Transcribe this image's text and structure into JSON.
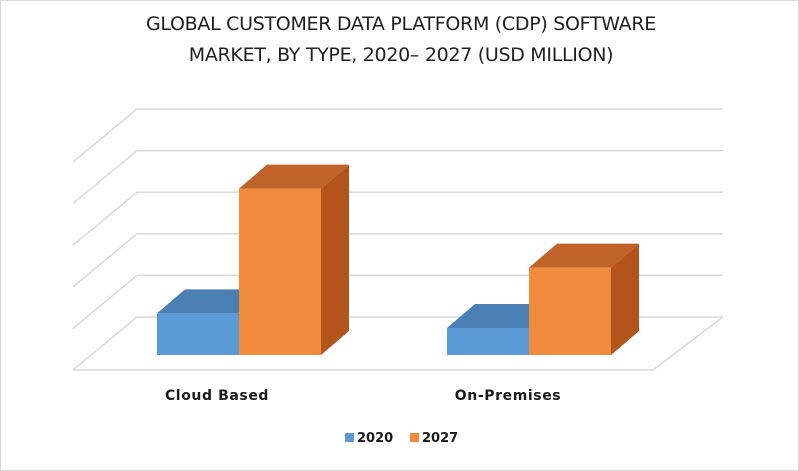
{
  "chart_data": {
    "type": "bar",
    "title_lines": [
      "GLOBAL CUSTOMER DATA PLATFORM (CDP) SOFTWARE",
      "MARKET, BY TYPE, 2020– 2027 (USD MILLION)"
    ],
    "categories": [
      "Cloud Based",
      "On-Premises"
    ],
    "series": [
      {
        "name": "2020",
        "values": [
          1.0,
          0.65
        ]
      },
      {
        "name": "2027",
        "values": [
          4.0,
          2.1
        ]
      }
    ],
    "ylim": [
      0,
      5
    ],
    "grid": true,
    "legend": "bottom",
    "three_d": true,
    "colors": {
      "2020": {
        "front": "#5b9bd5",
        "top": "#4a7fb3",
        "side": "#3d6d9e"
      },
      "2027": {
        "front": "#f08a3c",
        "top": "#c0632a",
        "side": "#b3541d"
      },
      "grid": "#d9d9d9"
    }
  }
}
